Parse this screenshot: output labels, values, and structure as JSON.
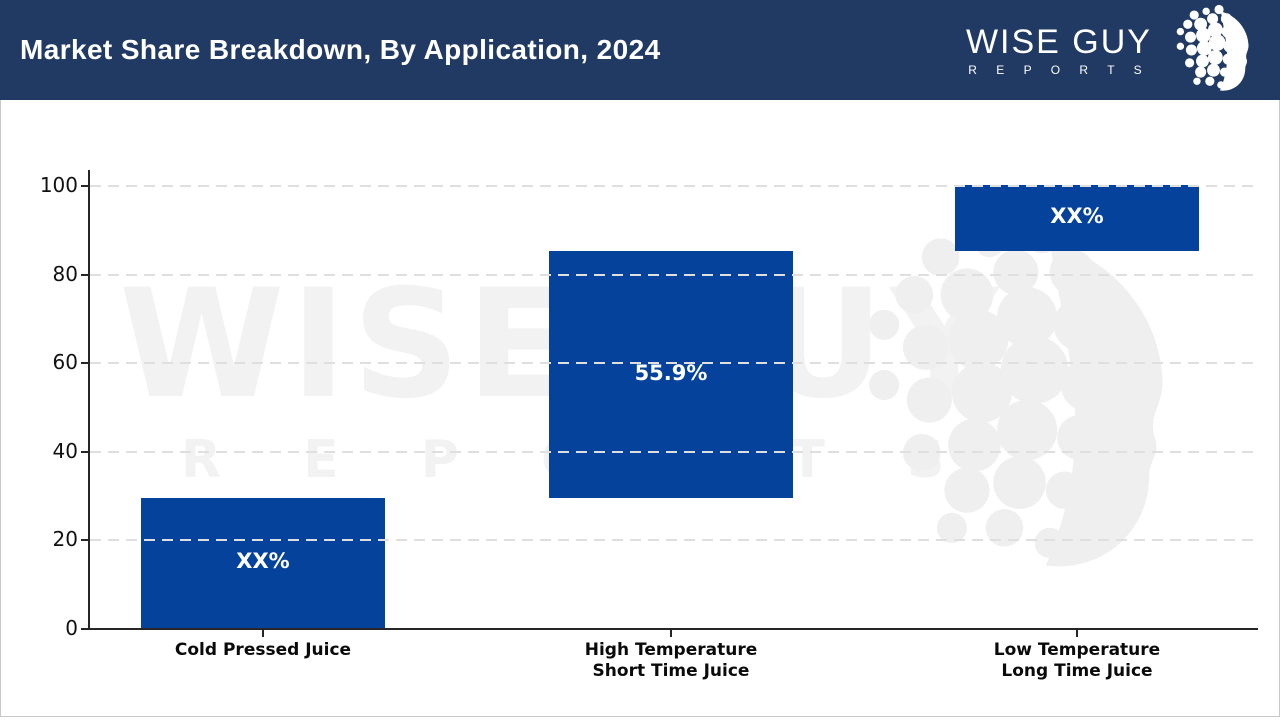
{
  "header": {
    "title": "Market Share Breakdown, By Application, 2024",
    "bg_color": "#203A64",
    "logo": {
      "brand": "WISE GUY",
      "sub": "R E P O R T S",
      "icon": "dotted-face-profile-icon"
    }
  },
  "watermark": {
    "brand": "WISE GUY",
    "sub": "R E P O R T S",
    "icon": "dotted-face-profile-watermark"
  },
  "chart_data": {
    "type": "bar",
    "variant": "floating-segment-waterfall",
    "title": "Market Share Breakdown, By Application, 2024",
    "categories": [
      "Cold Pressed Juice",
      "High Temperature Short Time Juice",
      "Low Temperature Long Time Juice"
    ],
    "category_lines": [
      [
        "Cold Pressed Juice"
      ],
      [
        "High Temperature",
        "Short Time Juice"
      ],
      [
        "Low Temperature",
        "Long Time Juice"
      ]
    ],
    "series": [
      {
        "name": "Cold Pressed Juice",
        "start": 0,
        "end": 29.3,
        "value_label": "XX%"
      },
      {
        "name": "High Temperature Short Time Juice",
        "start": 29.3,
        "end": 85.2,
        "value_label": "55.9%"
      },
      {
        "name": "Low Temperature Long Time Juice",
        "start": 85.2,
        "end": 100,
        "value_label": "XX%"
      }
    ],
    "xlabel": "",
    "ylabel": "",
    "yticks": [
      0,
      20,
      40,
      60,
      80,
      100
    ],
    "ylim": [
      0,
      103.5
    ],
    "bar_color": "#04429C",
    "grid": {
      "axis": "y",
      "style": "dashed",
      "color": "#DFDFDF",
      "drawn_over_bars": true
    },
    "legend": "none"
  }
}
